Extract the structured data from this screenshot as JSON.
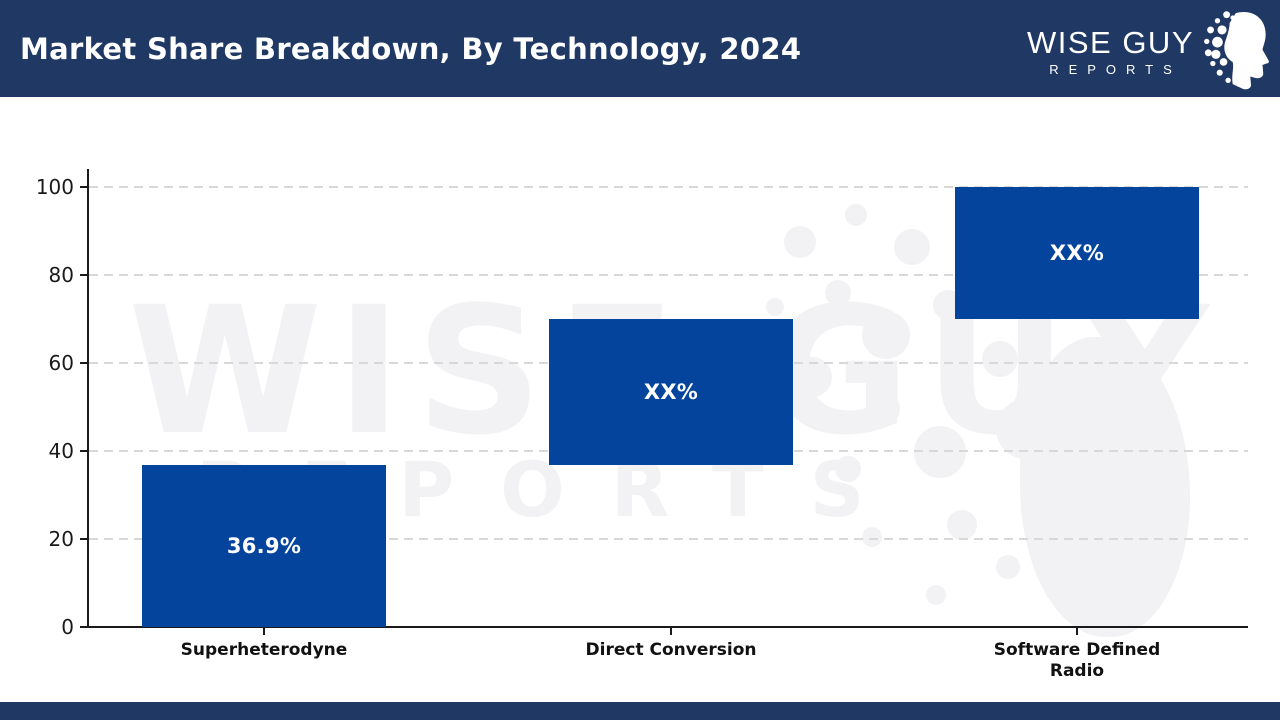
{
  "header": {
    "title": "Market Share Breakdown, By Technology, 2024",
    "logo": {
      "wordmark": "WISE GUY",
      "subtext": "REPORTS"
    }
  },
  "watermark": {
    "line1": "WISE GUY",
    "line2": "REPORTS"
  },
  "colors": {
    "header_bg": "#1f3864",
    "footer_bg": "#1f3864",
    "bar_fill": "#05449d",
    "bar_label_text": "#ffffff",
    "gridline": "#d8d8d8",
    "axis": "#1a1a1a",
    "watermark": "#f2f2f4"
  },
  "chart_data": {
    "type": "bar",
    "variant": "stacked-waterfall-percent",
    "title": "Market Share Breakdown, By Technology, 2024",
    "categories": [
      "Superheterodyne",
      "Direct Conversion",
      "Software Defined Radio"
    ],
    "segments": [
      {
        "category": "Superheterodyne",
        "start": 0,
        "end": 36.9,
        "label": "36.9%"
      },
      {
        "category": "Direct Conversion",
        "start": 36.9,
        "end": 70,
        "label": "XX%"
      },
      {
        "category": "Software Defined Radio",
        "start": 70,
        "end": 100,
        "label": "XX%"
      }
    ],
    "xlabel": "",
    "ylabel": "",
    "ylim": [
      0,
      104
    ],
    "yticks": [
      0,
      20,
      40,
      60,
      80,
      100
    ],
    "grid": "horizontal-dashed",
    "legend": "none",
    "bar_value_labels_inside": true
  }
}
